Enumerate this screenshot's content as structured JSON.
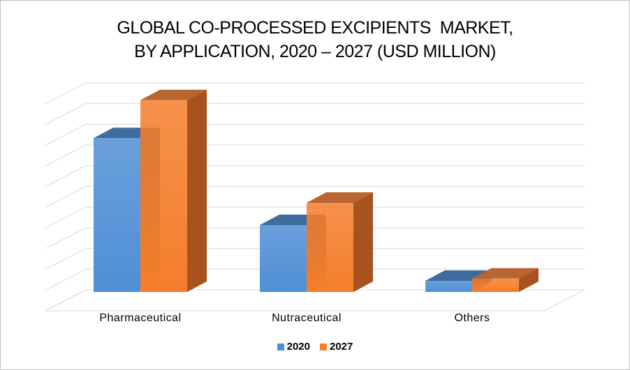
{
  "chart_data": {
    "type": "bar",
    "title_lines": [
      "GLOBAL CO-PROCESSED EXCIPIENTS  MARKET,",
      "BY APPLICATION, 2020 – 2027 (USD MILLION)"
    ],
    "categories": [
      "Pharmaceutical",
      "Nutraceutical",
      "Others"
    ],
    "series": [
      {
        "name": "2020",
        "values": [
          6.9,
          3.0,
          0.5
        ],
        "color": "#4f8fd6",
        "top_color": "#3f6c9e",
        "side_color": "#2f5a8a"
      },
      {
        "name": "2027",
        "values": [
          8.6,
          4.0,
          0.6
        ],
        "color": "#f47e2b",
        "top_color": "#b8662f",
        "side_color": "#a7521f"
      }
    ],
    "ylim": [
      0,
      10
    ],
    "grid": true,
    "legend_position": "bottom",
    "view": "3d-clustered-column"
  }
}
